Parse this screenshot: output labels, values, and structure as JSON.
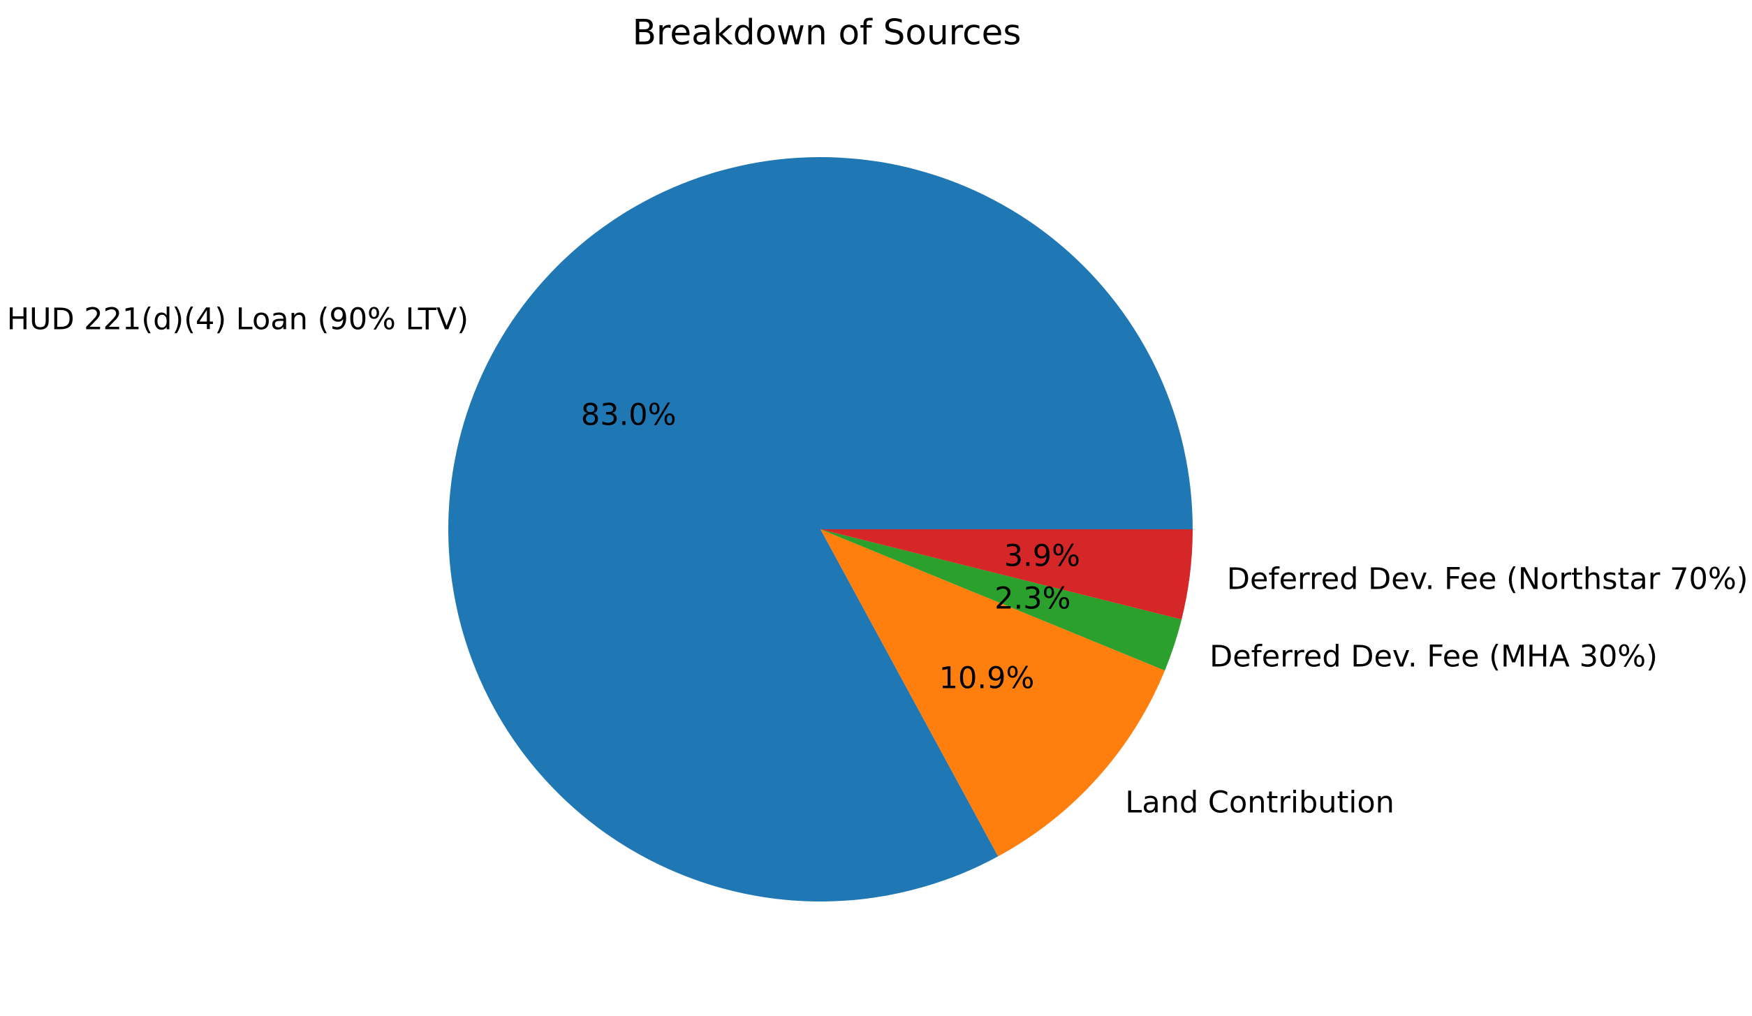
{
  "title": "Breakdown of Sources",
  "background_color": "#ffffff",
  "text_color": "#000000",
  "chart_data": {
    "type": "pie",
    "title": "Breakdown of Sources",
    "start_angle_deg": 0,
    "direction": "counterclockwise",
    "pct_distance": 0.6,
    "label_distance": 1.1,
    "legend": "none",
    "slices": [
      {
        "label": "HUD 221(d)(4) Loan (90% LTV)",
        "value": 83.0,
        "pct_label": "83.0%",
        "color": "#1f77b4"
      },
      {
        "label": "Land Contribution",
        "value": 10.9,
        "pct_label": "10.9%",
        "color": "#ff7f0e"
      },
      {
        "label": "Deferred Dev. Fee (MHA 30%)",
        "value": 2.3,
        "pct_label": "2.3%",
        "color": "#2ca02c"
      },
      {
        "label": "Deferred Dev. Fee (Northstar 70%)",
        "value": 3.9,
        "pct_label": "3.9%",
        "color": "#d62728"
      }
    ]
  }
}
